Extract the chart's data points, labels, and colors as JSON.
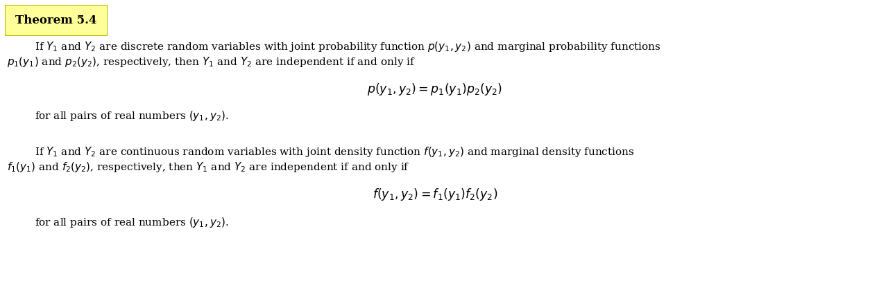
{
  "title": "Theorem 5.4",
  "title_bg": "#FFFF99",
  "title_border": "#B8B800",
  "bg_color": "#FFFFFF",
  "figsize": [
    12.54,
    4.22
  ],
  "dpi": 100,
  "line1": "If $Y_1$ and $Y_2$ are discrete random variables with joint probability function $p(y_1, y_2)$ and marginal probability functions",
  "line2": "$p_1(y_1)$ and $p_2(y_2)$, respectively, then $Y_1$ and $Y_2$ are independent if and only if",
  "formula1": "$p(y_1, y_2) = p_1(y_1)p_2(y_2)$",
  "line3": "for all pairs of real numbers $(y_1, y_2)$.",
  "line4": "If $Y_1$ and $Y_2$ are continuous random variables with joint density function $f(y_1, y_2)$ and marginal density functions",
  "line5": "$f_1(y_1)$ and $f_2(y_2)$, respectively, then $Y_1$ and $Y_2$ are independent if and only if",
  "formula2": "$f(y_1, y_2) = f_1(y_1)f_2(y_2)$",
  "line6": "for all pairs of real numbers $(y_1, y_2)$.",
  "font_size": 11.0,
  "formula_font_size": 12.5,
  "title_font_size": 12.0
}
